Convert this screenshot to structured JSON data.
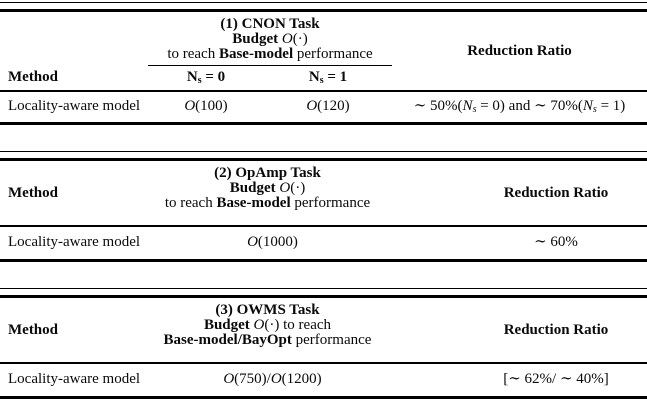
{
  "colors": {
    "background": "#ffffff",
    "text": "#0a0a0a",
    "rule": "#000000"
  },
  "tables": [
    {
      "name": "cnon",
      "header": {
        "title": "(1) CNON Task",
        "budget_bold": "Budget ",
        "budget_math_o": "O",
        "budget_math_rest": "(·)",
        "reach_pre": "to reach ",
        "reach_bold": "Base-model",
        "reach_post": " performance",
        "method": "Method",
        "reduction": "Reduction Ratio",
        "subcol1": {
          "base": "N",
          "sub": "s",
          "rest": " = 0"
        },
        "subcol2": {
          "base": "N",
          "sub": "s",
          "rest": " = 1"
        }
      },
      "row": {
        "method": "Locality-aware model",
        "b1_o": "O",
        "b1_rest": "(100)",
        "b2_o": "O",
        "b2_rest": "(120)",
        "red": {
          "seg1": "∼ 50%(",
          "n1": "N",
          "s1": "s",
          "seg2": " = 0) and ∼ 70%(",
          "n2": "N",
          "s2": "s",
          "seg3": " = 1)"
        }
      }
    },
    {
      "name": "opamp",
      "header": {
        "title": "(2) OpAmp Task",
        "budget_bold": "Budget ",
        "budget_math_o": "O",
        "budget_math_rest": "(·)",
        "reach_pre": "to reach ",
        "reach_bold": "Base-model",
        "reach_post": " performance",
        "method": "Method",
        "reduction": "Reduction Ratio"
      },
      "row": {
        "method": "Locality-aware model",
        "b_o": "O",
        "b_rest": "(1000)",
        "reduction": "∼ 60%"
      }
    },
    {
      "name": "owms",
      "header": {
        "title": "(3) OWMS Task",
        "budget_bold": "Budget ",
        "budget_math_o": "O",
        "budget_math_rest": "(·)",
        "budget_post": " to reach",
        "line3_bold": "Base-model/BayOpt",
        "line3_post": " performance",
        "method": "Method",
        "reduction": "Reduction Ratio"
      },
      "row": {
        "method": "Locality-aware model",
        "b1_o": "O",
        "b1_rest": "(750)/",
        "b2_o": "O",
        "b2_rest": "(1200)",
        "reduction": "[∼ 62%/ ∼ 40%]"
      }
    }
  ]
}
